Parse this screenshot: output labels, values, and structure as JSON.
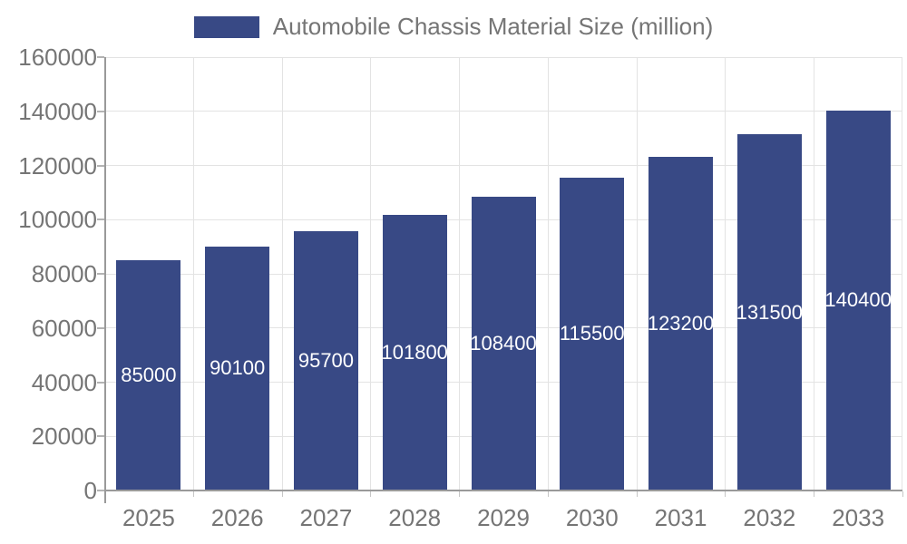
{
  "chart_data": {
    "type": "bar",
    "title": "Automobile Chassis Material Size (million)",
    "categories": [
      "2025",
      "2026",
      "2027",
      "2028",
      "2029",
      "2030",
      "2031",
      "2032",
      "2033"
    ],
    "values": [
      85000,
      90100,
      95700,
      101800,
      108400,
      115500,
      123200,
      131500,
      140400
    ],
    "bar_labels": [
      "85000",
      "90100",
      "95700",
      "101800",
      "108400",
      "115500",
      "123200",
      "131500",
      "140400"
    ],
    "xlabel": "",
    "ylabel": "",
    "ylim": [
      0,
      160000
    ],
    "yticks": [
      0,
      20000,
      40000,
      60000,
      80000,
      100000,
      120000,
      140000,
      160000
    ],
    "ytick_labels": [
      "0",
      "20000",
      "40000",
      "60000",
      "80000",
      "100000",
      "120000",
      "140000",
      "160000"
    ],
    "grid": true,
    "legend_position": "top-center",
    "colors": {
      "bar": "#384985",
      "bar_label_text": "#ffffff",
      "grid": "#e3e3e3",
      "axis": "#9a9a9a",
      "tick_text": "#757575",
      "background": "#ffffff"
    }
  }
}
